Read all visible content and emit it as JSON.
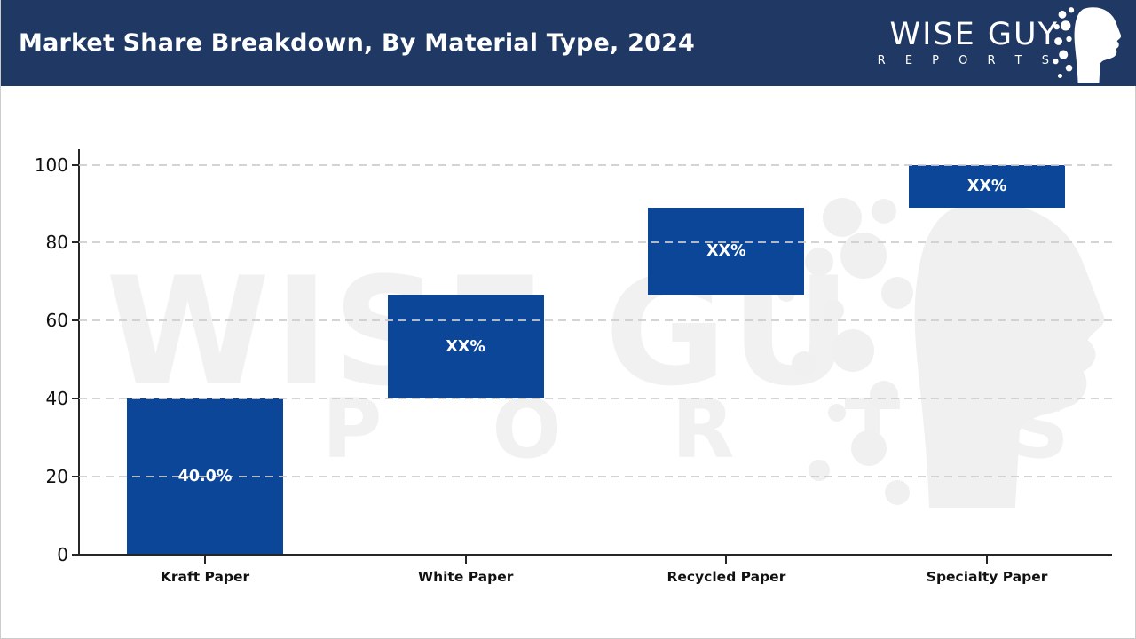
{
  "header": {
    "title": "Market Share Breakdown, By Material Type, 2024",
    "bg_color": "#1f3864",
    "brand": {
      "line1": "WISE GUY",
      "line2": "R E P O R T S"
    }
  },
  "watermark": {
    "line1": "WISE GU",
    "line2": "P O R T S"
  },
  "chart_data": {
    "type": "bar",
    "subtype": "waterfall-stacked-segments",
    "title": "Market Share Breakdown, By Material Type, 2024",
    "categories": [
      "Kraft Paper",
      "White Paper",
      "Recycled Paper",
      "Specialty Paper"
    ],
    "segments": [
      {
        "category": "Kraft Paper",
        "start": 0,
        "end": 40,
        "value": 40.0,
        "label": "40.0%"
      },
      {
        "category": "White Paper",
        "start": 40,
        "end": 66.6,
        "value": 26.6,
        "label": "XX%"
      },
      {
        "category": "Recycled Paper",
        "start": 66.6,
        "end": 88.9,
        "value": 22.3,
        "label": "XX%"
      },
      {
        "category": "Specialty Paper",
        "start": 88.9,
        "end": 100,
        "value": 11.1,
        "label": "XX%"
      }
    ],
    "y_ticks": [
      0,
      20,
      40,
      60,
      80,
      100
    ],
    "ylim": [
      0,
      104
    ],
    "xlabel": "",
    "ylabel": "",
    "bar_color": "#0b4699",
    "bar_label_color": "#ffffff",
    "grid": "horizontal-dashed-over-bars",
    "gridline_color": "#d8d8d8",
    "axis_color": "#262626",
    "legend": "none"
  }
}
